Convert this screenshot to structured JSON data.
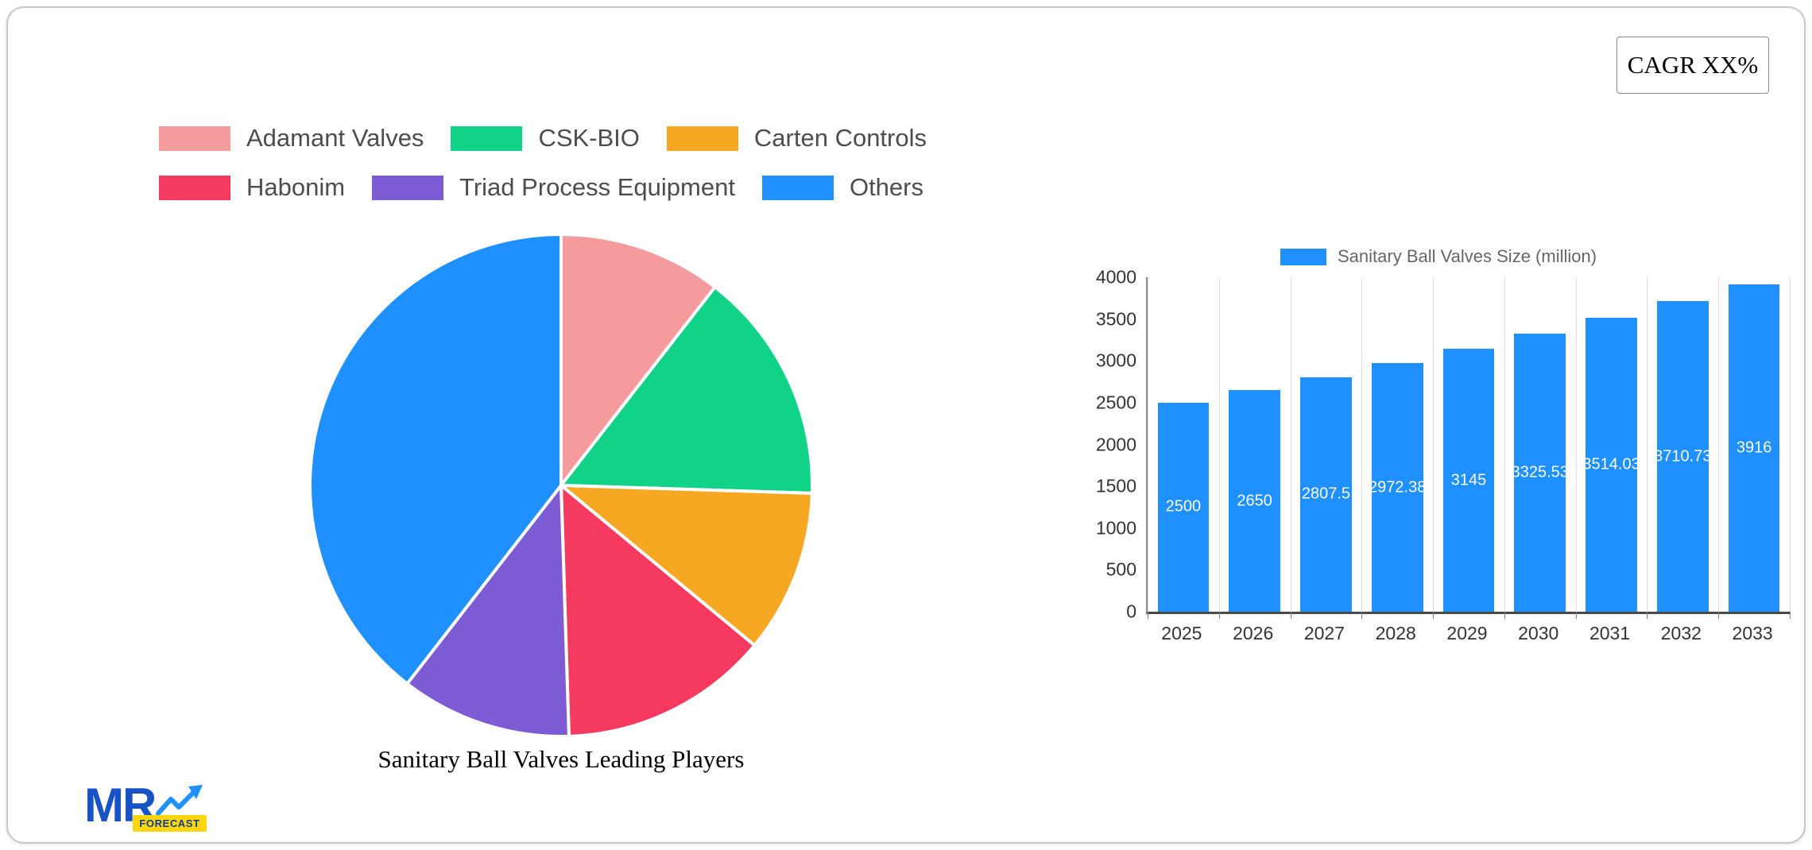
{
  "cagr_box": {
    "label": "CAGR XX%"
  },
  "logo": {
    "mr": "MR",
    "forecast": "FORECAST"
  },
  "chart_data": [
    {
      "type": "pie",
      "title": "Sanitary Ball Valves Leading Players",
      "labels": [
        "Adamant Valves",
        "CSK-BIO",
        "Carten Controls",
        "Habonim",
        "Triad Process Equipment",
        "Others"
      ],
      "values": [
        10.5,
        15,
        10.5,
        13.5,
        11,
        39.5
      ],
      "colors": [
        "#F59B9E",
        "#10D388",
        "#F7A823",
        "#F63A5F",
        "#7D5BD4",
        "#1E90FF"
      ],
      "legend_position": "top",
      "slice_border_color": "#ffffff"
    },
    {
      "type": "bar",
      "title": "Sanitary Ball Valves Size (million)",
      "categories": [
        "2025",
        "2026",
        "2027",
        "2028",
        "2029",
        "2030",
        "2031",
        "2032",
        "2033"
      ],
      "values": [
        2500,
        2650,
        2807.5,
        2972.38,
        3145,
        3325.53,
        3514.03,
        3710.73,
        3916
      ],
      "labels": [
        "2500",
        "2650",
        "2807.5",
        "2972.38",
        "3145",
        "3325.53",
        "3514.03",
        "3710.73",
        "3916"
      ],
      "bar_color": "#1E90FF",
      "ylim": [
        0,
        4000
      ],
      "yticks": [
        0,
        500,
        1000,
        1500,
        2000,
        2500,
        3000,
        3500,
        4000
      ],
      "grid": "vertical",
      "legend_position": "top"
    }
  ]
}
